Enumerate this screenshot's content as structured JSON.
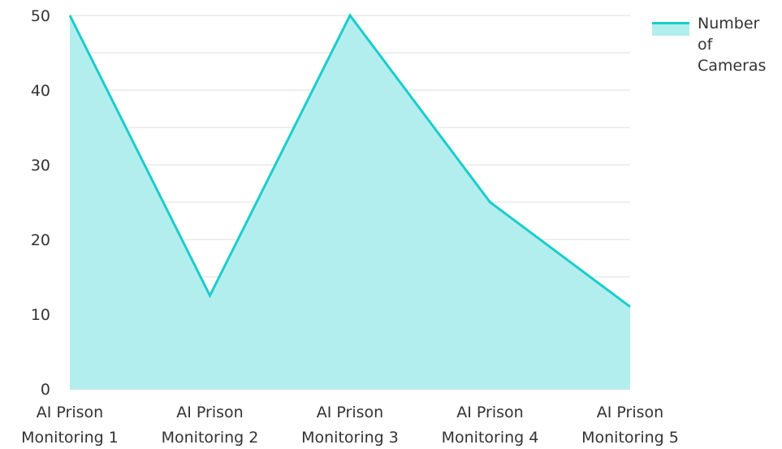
{
  "chart_data": {
    "type": "area",
    "categories": [
      "AI Prison Monitoring 1",
      "AI Prison Monitoring 2",
      "AI Prison Monitoring 3",
      "AI Prison Monitoring 4",
      "AI Prison Monitoring 5"
    ],
    "category_lines": [
      [
        "AI Prison",
        "Monitoring 1"
      ],
      [
        "AI Prison",
        "Monitoring 2"
      ],
      [
        "AI Prison",
        "Monitoring 3"
      ],
      [
        "AI Prison",
        "Monitoring 4"
      ],
      [
        "AI Prison",
        "Monitoring 5"
      ]
    ],
    "series": [
      {
        "name": "Number of Cameras",
        "values": [
          50,
          12.5,
          50,
          25,
          11
        ],
        "line_color": "#1ccccc",
        "fill_color": "#b2eeee"
      }
    ],
    "ylim": [
      0,
      50
    ],
    "yticks": [
      "0",
      "10",
      "20",
      "30",
      "40",
      "50"
    ],
    "grid": true,
    "legend_position": "top-right",
    "legend_lines": [
      "Number",
      "of",
      "Cameras"
    ],
    "title": "",
    "xlabel": "",
    "ylabel": ""
  }
}
